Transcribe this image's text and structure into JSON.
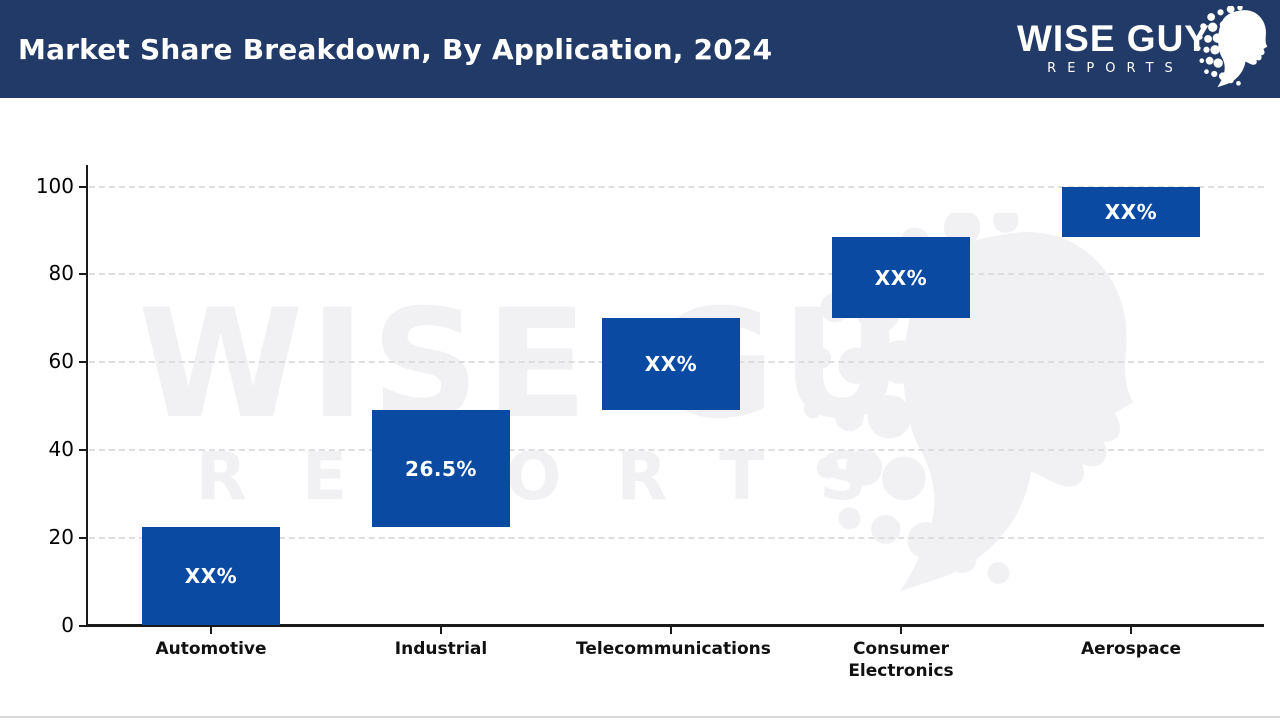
{
  "header": {
    "title": "Market Share Breakdown, By Application, 2024",
    "logo": {
      "name_top": "WISE GUY",
      "name_bottom": "REPORTS"
    }
  },
  "watermark": {
    "line1": "WISE GUY",
    "line2": "REPORTS"
  },
  "colors": {
    "header_bg": "#213a67",
    "bar_fill": "#0b4aa2",
    "bar_label": "#ffffff",
    "grid_line": "#dedede",
    "axis_line": "#1a1a1a",
    "tick_label": "#000000",
    "watermark_gray": "#f1f1f3",
    "bottom_rule": "#d9d9d9"
  },
  "chart_data": {
    "type": "bar",
    "subtype": "waterfall-floating-bars",
    "title": "Market Share Breakdown, By Application, 2024",
    "xlabel": "",
    "ylabel": "",
    "categories": [
      "Automotive",
      "Industrial",
      "Telecommunications",
      "Consumer Electronics",
      "Aerospace"
    ],
    "series": [
      {
        "name": "Market share (%)",
        "segments": [
          {
            "category": "Automotive",
            "from": 0,
            "to": 22.5,
            "label": "XX%"
          },
          {
            "category": "Industrial",
            "from": 22.5,
            "to": 49,
            "label": "26.5%"
          },
          {
            "category": "Telecommunications",
            "from": 49,
            "to": 70,
            "label": "XX%"
          },
          {
            "category": "Consumer Electronics",
            "from": 70,
            "to": 88.5,
            "label": "XX%"
          },
          {
            "category": "Aerospace",
            "from": 88.5,
            "to": 100,
            "label": "XX%"
          }
        ]
      }
    ],
    "yticks": [
      0,
      20,
      40,
      60,
      80,
      100
    ],
    "ylim": [
      0,
      105
    ],
    "grid": "horizontal-dashed",
    "legend": "none"
  }
}
